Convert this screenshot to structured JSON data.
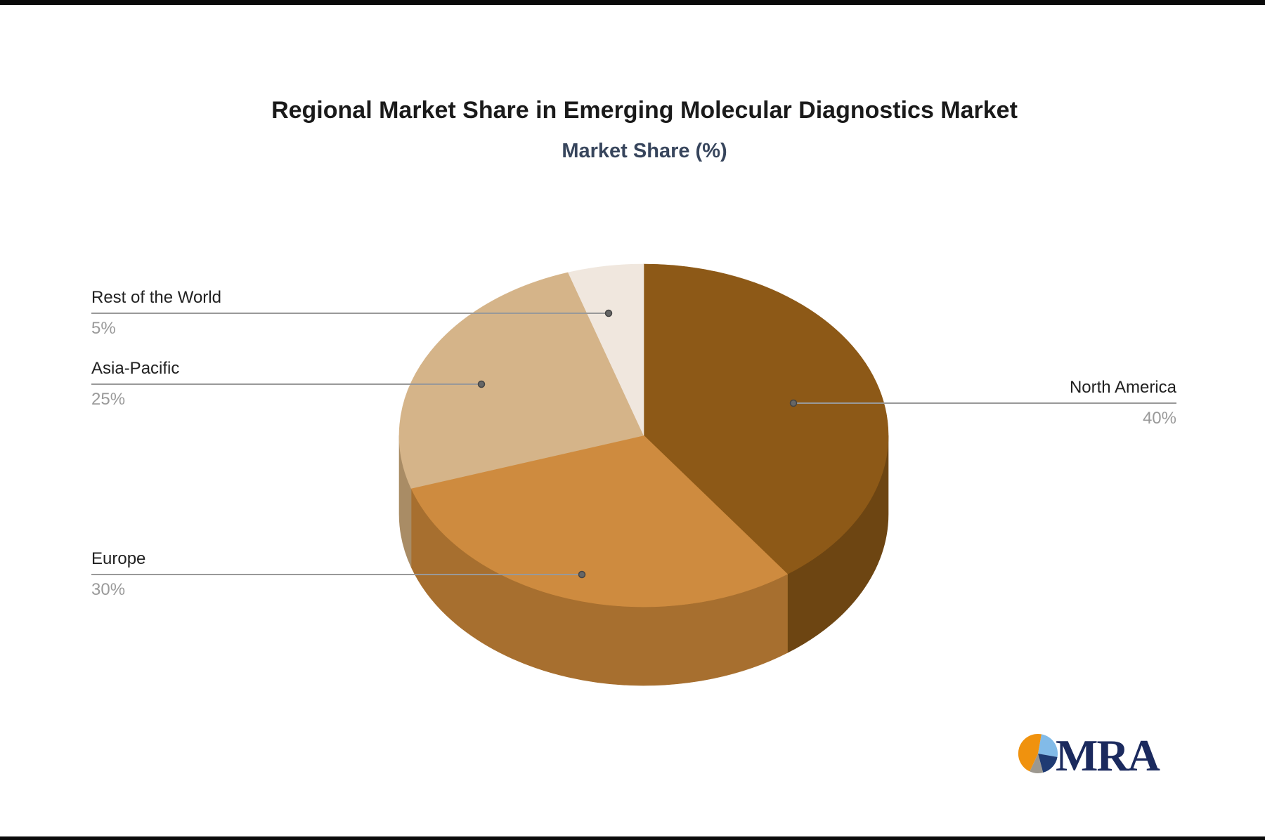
{
  "header": {
    "title": "Regional Market Share in Emerging Molecular Diagnostics Market",
    "subtitle": "Market Share (%)",
    "title_color": "#1a1a1a",
    "subtitle_color": "#37455C"
  },
  "chart_data": {
    "type": "pie",
    "title": "Regional Market Share in Emerging Molecular Diagnostics Market",
    "subtitle": "Market Share (%)",
    "unit": "%",
    "is_3d": true,
    "direction": "clockwise",
    "start_angle_deg": 0,
    "legend": "none",
    "points": [
      {
        "label": "North America",
        "value": 40,
        "display": "40%",
        "color": "#8D5917",
        "side_color": "#6D4512"
      },
      {
        "label": "Europe",
        "value": 30,
        "display": "30%",
        "color": "#CE8B3F",
        "side_color": "#A76F2F"
      },
      {
        "label": "Asia-Pacific",
        "value": 25,
        "display": "25%",
        "color": "#D5B489",
        "side_color": "#A98C65"
      },
      {
        "label": "Rest of the World",
        "value": 5,
        "display": "5%",
        "color": "#F0E7DE",
        "side_color": "#C0B6AB"
      }
    ],
    "label_style": {
      "name_color": "#212121",
      "value_color": "#9A9A9A",
      "connector_color": "#999999",
      "connector_dot_color": "#666666"
    }
  },
  "logo": {
    "text": "MRA",
    "text_color": "#1B2A5E",
    "pie_colors": {
      "orange": "#F0920E",
      "light_blue": "#82BBE8",
      "navy": "#1F3B73",
      "gray": "#9C9890"
    }
  }
}
